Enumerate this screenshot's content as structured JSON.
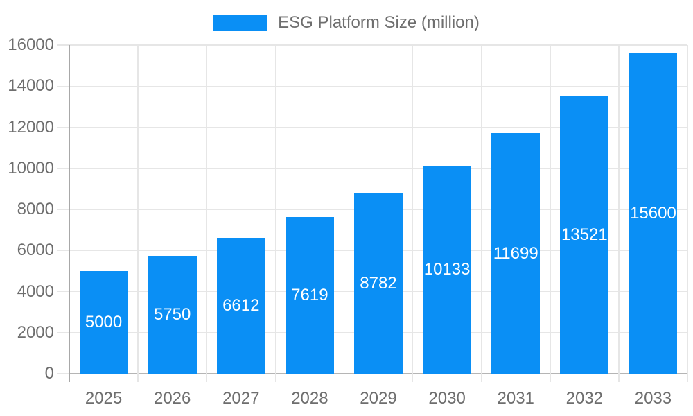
{
  "legend": {
    "label": "ESG Platform Size (million)",
    "swatch_color": "#0a8ff5"
  },
  "chart_data": {
    "type": "bar",
    "title": "ESG Platform Size (million)",
    "series_name": "ESG Platform Size (million)",
    "categories": [
      "2025",
      "2026",
      "2027",
      "2028",
      "2029",
      "2030",
      "2031",
      "2032",
      "2033"
    ],
    "values": [
      5000,
      5750,
      6612,
      7619,
      8782,
      10133,
      11699,
      13521,
      15600
    ],
    "xlabel": "",
    "ylabel": "",
    "ylim": [
      0,
      16000
    ],
    "yticks": [
      0,
      2000,
      4000,
      6000,
      8000,
      10000,
      12000,
      14000,
      16000
    ],
    "grid": true,
    "legend_position": "top-center",
    "value_labels": "inside-center",
    "colors": {
      "bar": "#0a8ff5",
      "value_label": "#ffffff",
      "axis_text": "#6e6e6e",
      "gridline": "#e6e6e6",
      "axis_line": "#a8a8a8",
      "baseline": "#b5b5b5",
      "background": "#ffffff"
    }
  }
}
